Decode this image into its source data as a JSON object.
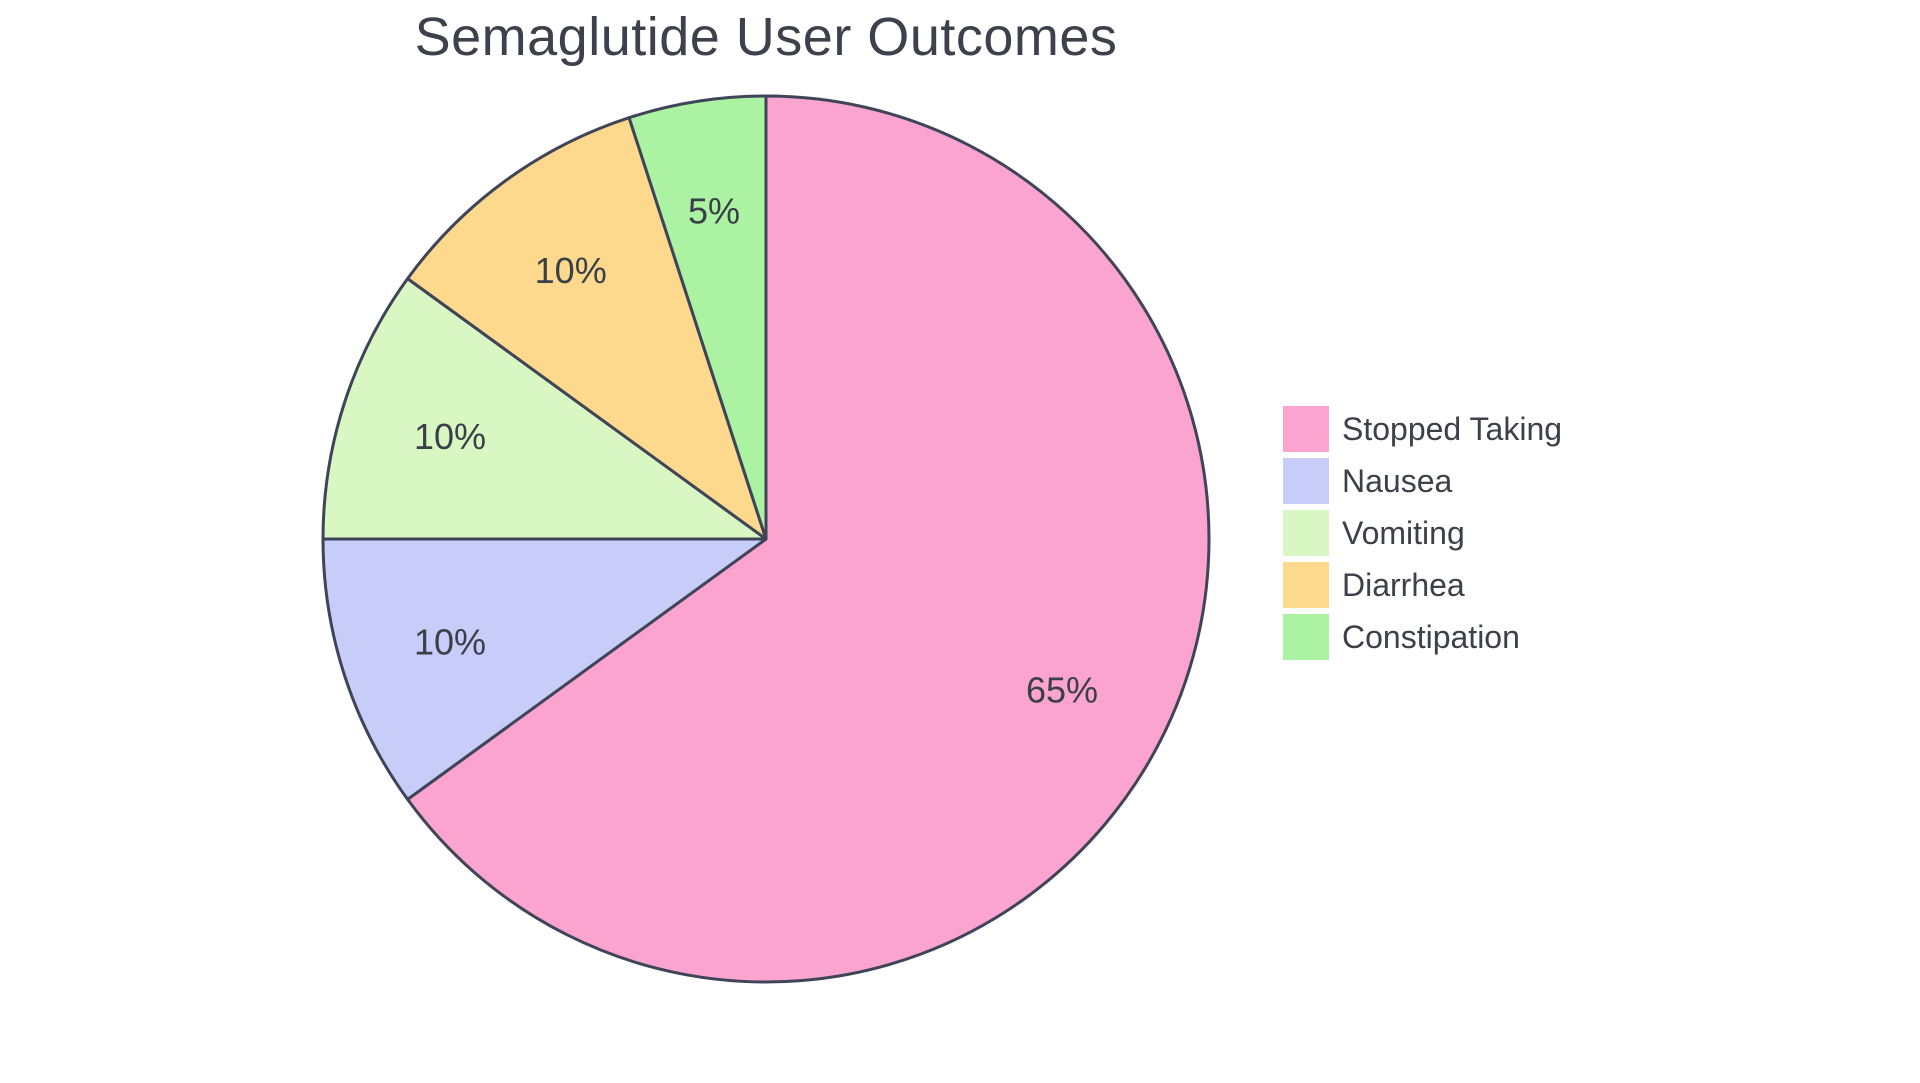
{
  "chart_data": {
    "type": "pie",
    "title": "Semaglutide User Outcomes",
    "categories": [
      "Stopped Taking",
      "Nausea",
      "Vomiting",
      "Diarrhea",
      "Constipation"
    ],
    "values": [
      65,
      10,
      10,
      10,
      5
    ],
    "labels": [
      "65%",
      "10%",
      "10%",
      "10%",
      "5%"
    ],
    "colors": [
      "#FBA4CF",
      "#C8CCF8",
      "#D9F7C2",
      "#FCD98C",
      "#ABF3A3"
    ],
    "value_unit": "percent",
    "start_angle": "12-oclock",
    "direction": "clockwise",
    "legend_position": "right",
    "slice_border_color": "#3F4458",
    "title_color": "#3D414B",
    "label_color": "#3B3F48",
    "background_color": "#FFFFFF"
  }
}
